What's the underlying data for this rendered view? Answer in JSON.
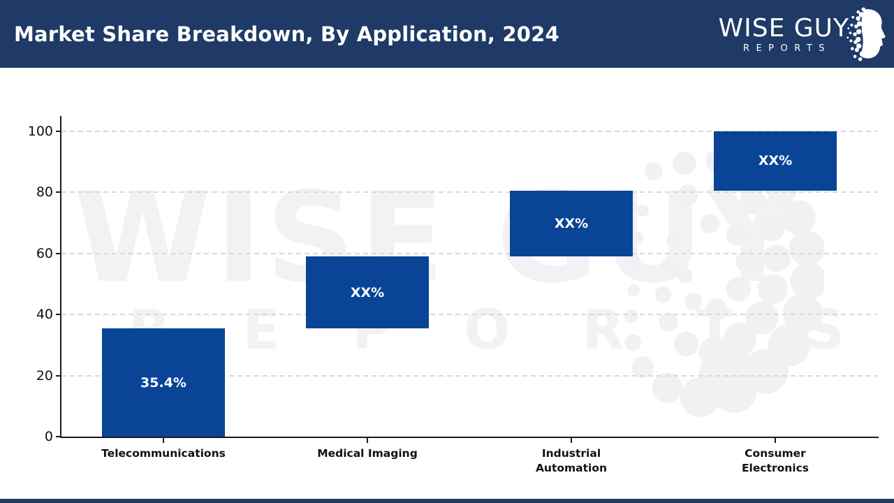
{
  "header": {
    "title": "Market Share Breakdown, By Application, 2024",
    "brand_name": "WISE GUY",
    "brand_sub": "REPORTS"
  },
  "watermark": {
    "name": "WISE GUY",
    "sub": "R E P O R T S"
  },
  "chart_data": {
    "type": "bar",
    "variant": "floating-segment-waterfall",
    "title": "Market Share Breakdown, By Application, 2024",
    "categories": [
      "Telecommunications",
      "Medical Imaging",
      "Industrial\nAutomation",
      "Consumer\nElectronics"
    ],
    "segments": [
      {
        "category": "Telecommunications",
        "start": 0,
        "end": 35.4,
        "value_label": "35.4%"
      },
      {
        "category": "Medical Imaging",
        "start": 35.4,
        "end": 59,
        "value_label": "XX%"
      },
      {
        "category": "Industrial Automation",
        "start": 59,
        "end": 80.5,
        "value_label": "XX%"
      },
      {
        "category": "Consumer Electronics",
        "start": 80.5,
        "end": 100,
        "value_label": "XX%"
      }
    ],
    "yticks": [
      0,
      20,
      40,
      60,
      80,
      100
    ],
    "ylim": [
      0,
      105
    ],
    "xlabel": "",
    "ylabel": "",
    "grid": "horizontal-dashed",
    "legend": "none"
  },
  "colors": {
    "header_bg": "#1f3a66",
    "bar": "#0a4496",
    "bar_label": "#ffffff",
    "grid": "#d9d9d9",
    "axis": "#1a1a1a",
    "tick_text": "#111111",
    "watermark": "#f2f2f4"
  }
}
